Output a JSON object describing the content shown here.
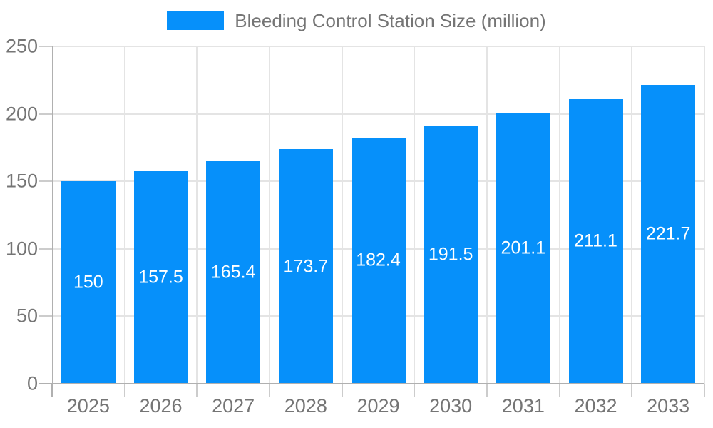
{
  "legend": {
    "label": "Bleeding Control Station Size (million)"
  },
  "colors": {
    "bar": "#0690FA",
    "axis": "#b0b0b0",
    "grid": "#e4e4e4",
    "tick": "#cccccc",
    "text": "#757575",
    "data_label": "#ffffff",
    "background": "#ffffff"
  },
  "chart_data": {
    "type": "bar",
    "title": "Bleeding Control Station Size (million)",
    "categories": [
      "2025",
      "2026",
      "2027",
      "2028",
      "2029",
      "2030",
      "2031",
      "2032",
      "2033"
    ],
    "values": [
      150,
      157.5,
      165.4,
      173.7,
      182.4,
      191.5,
      201.1,
      211.1,
      221.7
    ],
    "data_labels": [
      "150",
      "157.5",
      "165.4",
      "173.7",
      "182.4",
      "191.5",
      "201.1",
      "211.1",
      "221.7"
    ],
    "xlabel": "",
    "ylabel": "",
    "ylim": [
      0,
      250
    ],
    "yticks": [
      0,
      50,
      100,
      150,
      200,
      250
    ],
    "grid": true,
    "legend_position": "top-center"
  }
}
